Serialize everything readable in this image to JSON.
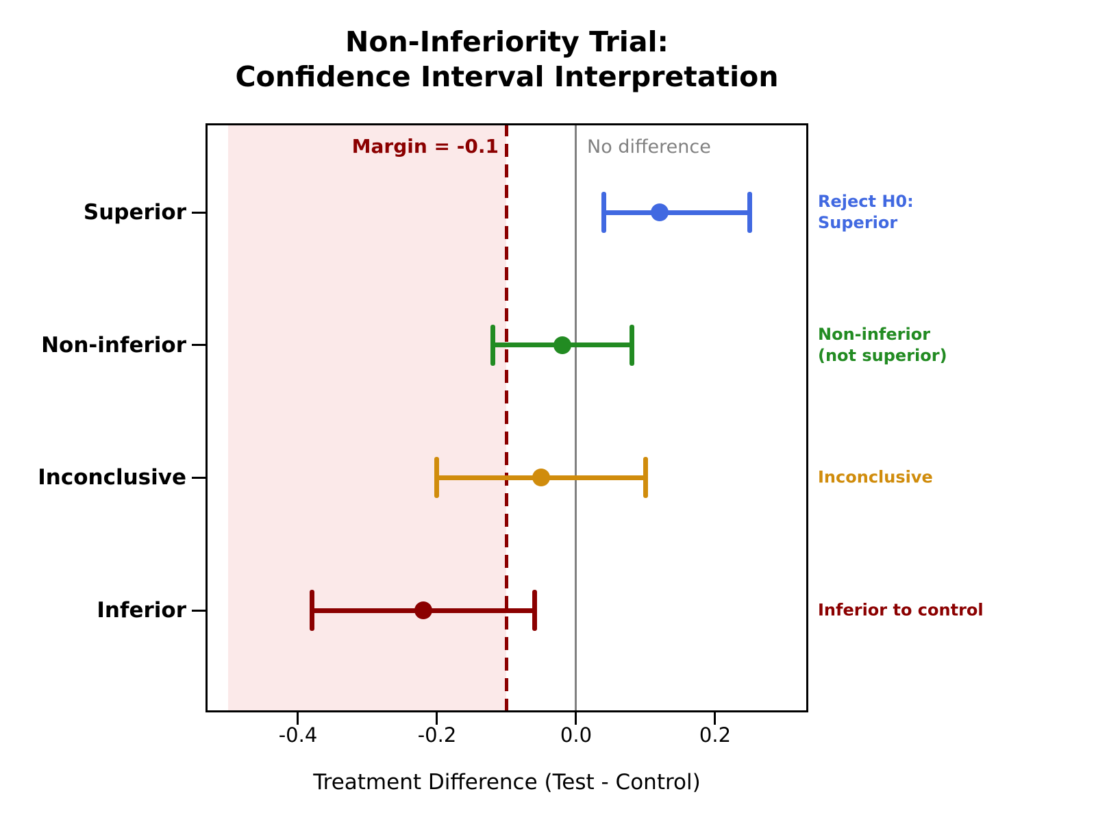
{
  "title": {
    "line1": "Non-Inferiority Trial:",
    "line2": "Confidence Interval Interpretation"
  },
  "xlabel": "Treatment Difference (Test - Control)",
  "chart_data": {
    "type": "ci_forest",
    "title": "Non-Inferiority Trial: Confidence Interval Interpretation",
    "xlabel": "Treatment Difference (Test - Control)",
    "categories": [
      "Superior",
      "Non-inferior",
      "Inconclusive",
      "Inferior"
    ],
    "series": [
      {
        "category": "Superior",
        "point": 0.12,
        "ci_low": 0.04,
        "ci_high": 0.25,
        "color": "#4169E1",
        "result_label_lines": [
          "Reject H0:",
          "Superior"
        ]
      },
      {
        "category": "Non-inferior",
        "point": -0.02,
        "ci_low": -0.12,
        "ci_high": 0.08,
        "color": "#228B22",
        "result_label_lines": [
          "Non-inferior",
          "(not superior)"
        ]
      },
      {
        "category": "Inconclusive",
        "point": -0.05,
        "ci_low": -0.2,
        "ci_high": 0.1,
        "color": "#D08C0C",
        "result_label_lines": [
          "Inconclusive"
        ]
      },
      {
        "category": "Inferior",
        "point": -0.22,
        "ci_low": -0.38,
        "ci_high": -0.06,
        "color": "#8B0000",
        "result_label_lines": [
          "Inferior to control"
        ]
      }
    ],
    "margin_line": {
      "value": -0.1,
      "label": "Margin = -0.1",
      "color": "#8B0000",
      "style": "dashed"
    },
    "zero_line": {
      "value": 0.0,
      "label": "No difference",
      "color": "#808080",
      "style": "solid"
    },
    "shaded_region": {
      "from": -0.5,
      "to": -0.1,
      "color": "#FBE9E9",
      "meaning": "inferiority zone"
    },
    "xticks": [
      -0.4,
      -0.2,
      0.0,
      0.2
    ],
    "xtick_labels": [
      "-0.4",
      "-0.2",
      "0.0",
      "0.2"
    ],
    "xlim": [
      -0.533,
      0.334
    ],
    "grid": false,
    "legend_position": "direct labels right of plot"
  }
}
